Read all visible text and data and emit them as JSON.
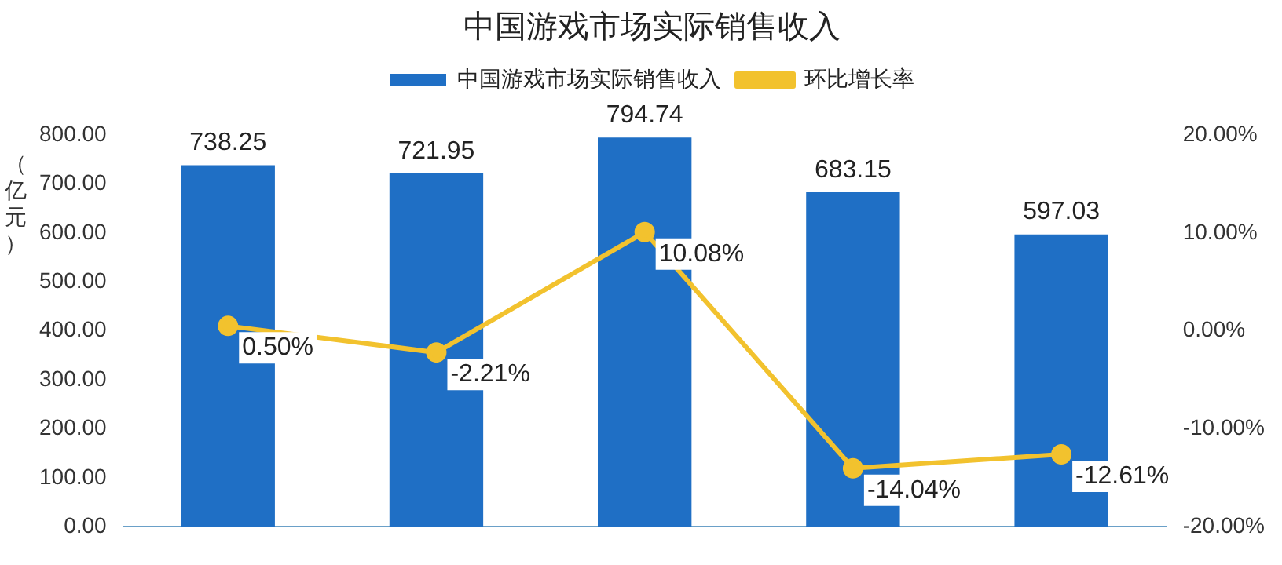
{
  "chart_data": {
    "type": "bar",
    "title": "中国游戏市场实际销售收入",
    "ylabel": "（亿元）",
    "categories": [
      null,
      null,
      null,
      null,
      null
    ],
    "series": [
      {
        "name": "中国游戏市场实际销售收入",
        "color": "#1f6fc5",
        "values": [
          738.25,
          721.95,
          794.74,
          683.15,
          597.03
        ],
        "value_labels": [
          "738.25",
          "721.95",
          "794.74",
          "683.15",
          "597.03"
        ]
      },
      {
        "name": "环比增长率",
        "type": "line",
        "axis": "y2",
        "color": "#f2c22e",
        "values": [
          0.5,
          -2.21,
          10.08,
          -14.04,
          -12.61
        ],
        "value_labels": [
          "0.50%",
          "-2.21%",
          "10.08%",
          "-14.04%",
          "-12.61%"
        ]
      }
    ],
    "ylim": [
      0,
      800
    ],
    "yticks": [
      {
        "value": 0,
        "label": "0.00"
      },
      {
        "value": 100,
        "label": "100.00"
      },
      {
        "value": 200,
        "label": "200.00"
      },
      {
        "value": 300,
        "label": "300.00"
      },
      {
        "value": 400,
        "label": "400.00"
      },
      {
        "value": 500,
        "label": "500.00"
      },
      {
        "value": 600,
        "label": "600.00"
      },
      {
        "value": 700,
        "label": "700.00"
      },
      {
        "value": 800,
        "label": "800.00"
      }
    ],
    "y2lim": [
      -20,
      20
    ],
    "y2ticks": [
      {
        "value": -20,
        "label": "-20.00%"
      },
      {
        "value": -10,
        "label": "-10.00%"
      },
      {
        "value": 0,
        "label": "0.00%"
      },
      {
        "value": 10,
        "label": "10.00%"
      },
      {
        "value": 20,
        "label": "20.00%"
      }
    ],
    "grid": false,
    "legend": "top",
    "marker": "circle",
    "line_style": "solid"
  }
}
